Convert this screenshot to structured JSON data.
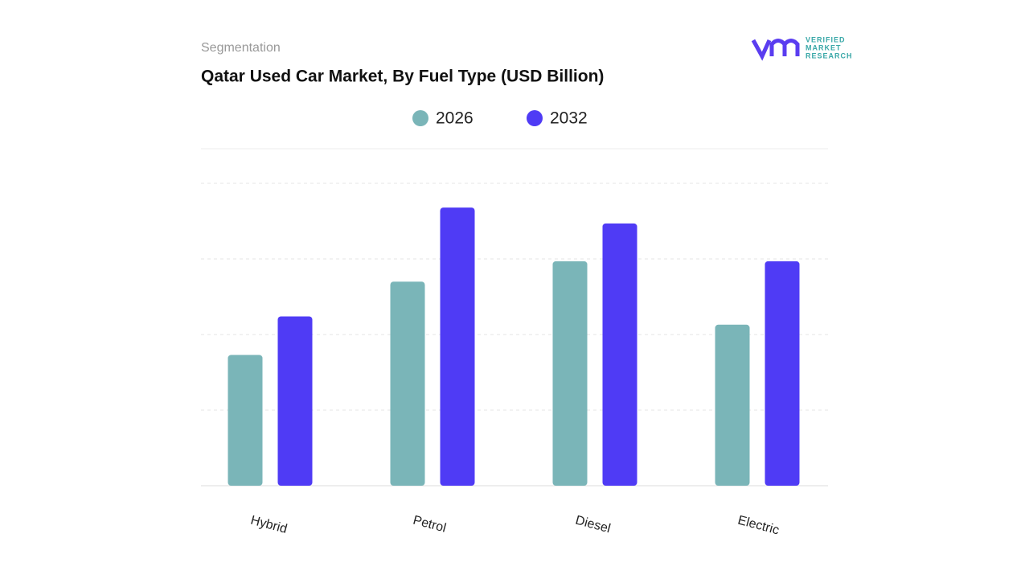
{
  "header": {
    "section": "Segmentation",
    "logo": {
      "line1": "VERIFIED",
      "line2": "MARKET",
      "line3": "RESEARCH"
    }
  },
  "chart_data": {
    "type": "bar",
    "title": "Qatar Used Car Market, By Fuel Type (USD Billion)",
    "categories": [
      "Hybrid",
      "Petrol",
      "Diesel",
      "Electric"
    ],
    "series": [
      {
        "name": "2026",
        "color": "#7ab5b8",
        "values": [
          1.73,
          2.7,
          2.97,
          2.13
        ]
      },
      {
        "name": "2032",
        "color": "#4f3bf5",
        "values": [
          2.24,
          3.68,
          3.47,
          2.97
        ]
      }
    ],
    "ylim": [
      0,
      4.5
    ],
    "yticks": [
      0,
      1,
      2,
      3,
      4
    ],
    "grid": true
  }
}
